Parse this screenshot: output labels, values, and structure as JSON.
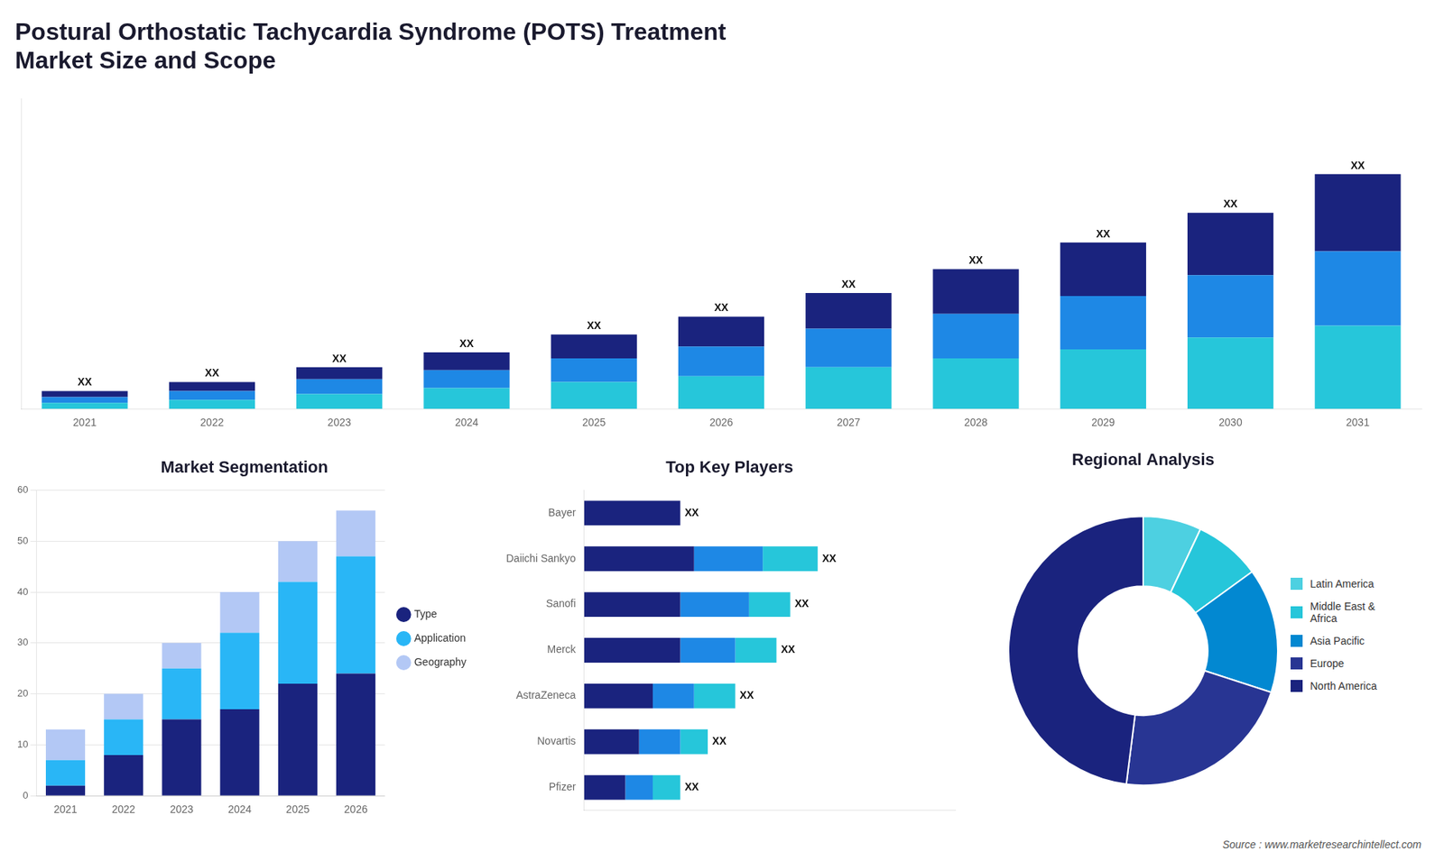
{
  "chart_data": [
    {
      "type": "bar",
      "title": "Postural Orthostatic Tachycardia Syndrome (POTS) Treatment\nMarket Size and Scope",
      "categories": [
        "2021",
        "2022",
        "2023",
        "2024",
        "2025",
        "2026",
        "2027",
        "2028",
        "2029",
        "2030",
        "2031"
      ],
      "series": [
        {
          "color": "#26c6da",
          "values": [
            2,
            3,
            5,
            7,
            9,
            11,
            14,
            17,
            20,
            24,
            28
          ]
        },
        {
          "color": "#1e88e5",
          "values": [
            2,
            3,
            5,
            6,
            8,
            10,
            13,
            15,
            18,
            21,
            25
          ]
        },
        {
          "color": "#1a237e",
          "values": [
            2,
            3,
            4,
            6,
            8,
            10,
            12,
            15,
            18,
            21,
            26
          ]
        }
      ],
      "stacked": true,
      "ylim": [
        0,
        104.28
      ],
      "tick_labels": "x",
      "grid": false,
      "data_labels": true,
      "value_labels": [
        "XX",
        "XX",
        "XX",
        "XX",
        "XX",
        "XX",
        "XX",
        "XX",
        "XX",
        "XX",
        "XX"
      ]
    },
    {
      "type": "bar",
      "title": "Market Segmentation",
      "categories": [
        "2021",
        "2022",
        "2023",
        "2024",
        "2025",
        "2026"
      ],
      "series": [
        {
          "name": "Type",
          "color": "#1a237e",
          "values": [
            2,
            8,
            15,
            17,
            22,
            24
          ]
        },
        {
          "name": "Application",
          "color": "#29b6f6",
          "values": [
            5,
            7,
            10,
            15,
            20,
            23
          ]
        },
        {
          "name": "Geography",
          "color": "#b3c8f5",
          "values": [
            6,
            5,
            5,
            8,
            8,
            9
          ]
        }
      ],
      "stacked": true,
      "ylim": [
        0,
        60
      ],
      "yticks": [
        0,
        10,
        20,
        30,
        40,
        50,
        60
      ],
      "grid": true,
      "legend": "right"
    },
    {
      "type": "bar",
      "title": "Top Key Players",
      "orientation": "horizontal",
      "categories": [
        "Bayer",
        "Daiichi Sankyo",
        "Sanofi",
        "Merck",
        "AstraZeneca",
        "Novartis",
        "Pfizer"
      ],
      "series": [
        {
          "color": "#1a237e",
          "values": [
            7,
            8,
            7,
            7,
            5,
            4,
            3
          ]
        },
        {
          "color": "#1e88e5",
          "values": [
            0,
            5,
            5,
            4,
            3,
            3,
            2
          ]
        },
        {
          "color": "#26c6da",
          "values": [
            0,
            4,
            3,
            3,
            3,
            2,
            2
          ]
        }
      ],
      "stacked": true,
      "xlim": [
        0,
        27
      ],
      "tick_labels": "y",
      "grid": false,
      "data_labels": true,
      "value_labels": [
        "XX",
        "XX",
        "XX",
        "XX",
        "XX",
        "XX",
        "XX"
      ]
    },
    {
      "type": "doughnut",
      "title": "Regional Analysis",
      "categories": [
        "Latin America",
        "Middle East &\nAfrica",
        "Asia Pacific",
        "Europe",
        "North America"
      ],
      "values": [
        7,
        8,
        15,
        22,
        48
      ],
      "colors": [
        "#4dd0e1",
        "#26c6da",
        "#0288d1",
        "#283593",
        "#1a237e"
      ],
      "legend": "right",
      "annotations": [
        "Source : www.marketresearchintellect.com"
      ]
    }
  ]
}
